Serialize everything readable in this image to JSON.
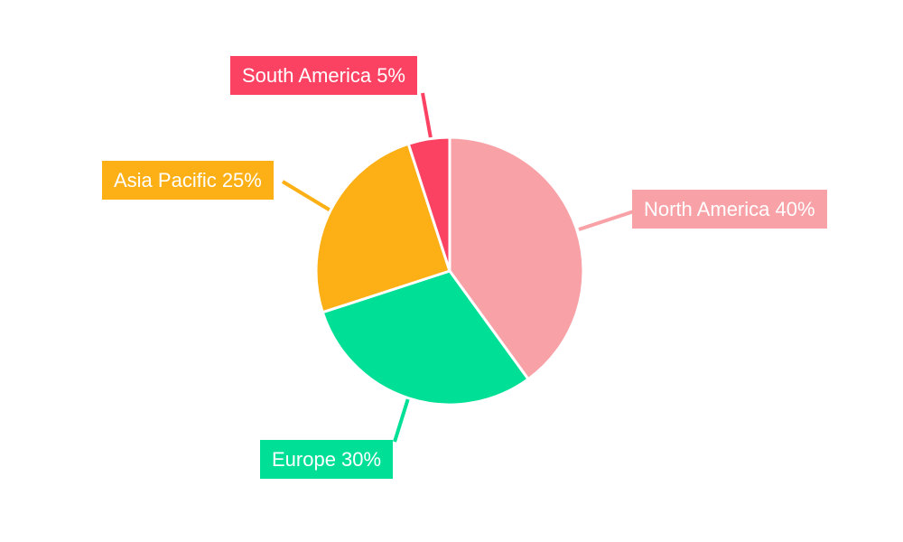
{
  "page": {
    "background_color": "#ffffff",
    "label_text_color": "#ffffff"
  },
  "chart_data": {
    "type": "pie",
    "title": "",
    "legend_position": "outside-callout-labels",
    "start_angle_deg": 0,
    "direction": "clockwise",
    "label_format": "{label} {value}%",
    "slices": [
      {
        "label": "North America",
        "value": 40,
        "color": "#F8A2A7"
      },
      {
        "label": "Europe",
        "value": 30,
        "color": "#00DF96"
      },
      {
        "label": "Asia Pacific",
        "value": 25,
        "color": "#FCB016"
      },
      {
        "label": "South America",
        "value": 5,
        "color": "#FB4263"
      }
    ],
    "callout_labels": [
      "North America 40%",
      "Europe 30%",
      "Asia Pacific 25%",
      "South America 5%"
    ]
  }
}
